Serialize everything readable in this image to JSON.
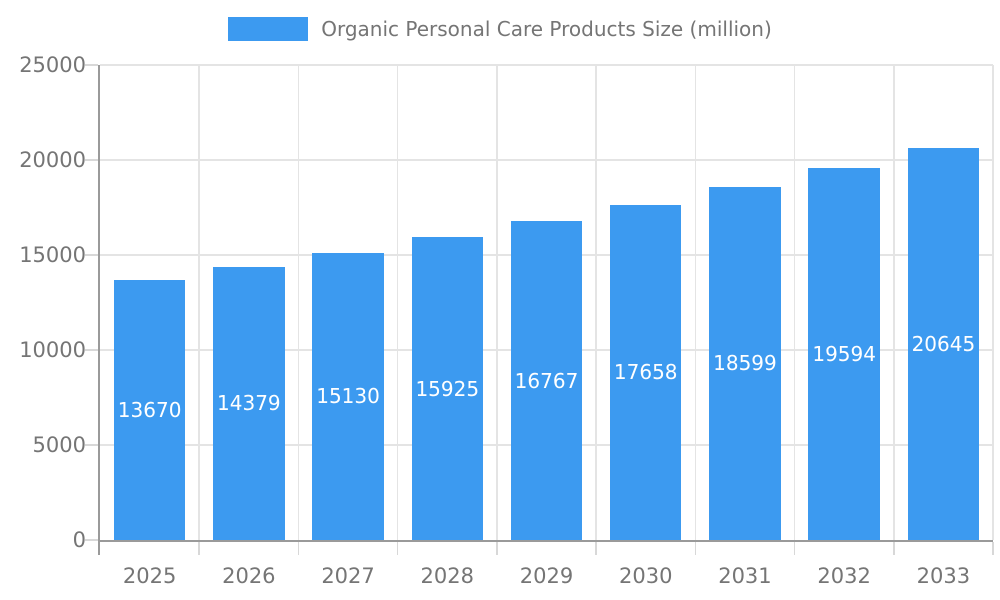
{
  "chart_data": {
    "type": "bar",
    "title": "Organic Personal Care Products Size (million)",
    "categories": [
      "2025",
      "2026",
      "2027",
      "2028",
      "2029",
      "2030",
      "2031",
      "2032",
      "2033"
    ],
    "values": [
      13670,
      14379,
      15130,
      15925,
      16767,
      17658,
      18599,
      19594,
      20645
    ],
    "xlabel": "",
    "ylabel": "",
    "ylim": [
      0,
      25000
    ],
    "y_ticks": [
      0,
      5000,
      10000,
      15000,
      20000,
      25000
    ],
    "grid": true,
    "legend_position": "top",
    "bar_color": "#3C9AF0",
    "value_label_color": "#FFFFFF",
    "axis_text_color": "#757575",
    "axis_line_color": "#9A9A9A",
    "grid_color": "#E4E4E4",
    "tick_color": "#D8D8D8"
  }
}
